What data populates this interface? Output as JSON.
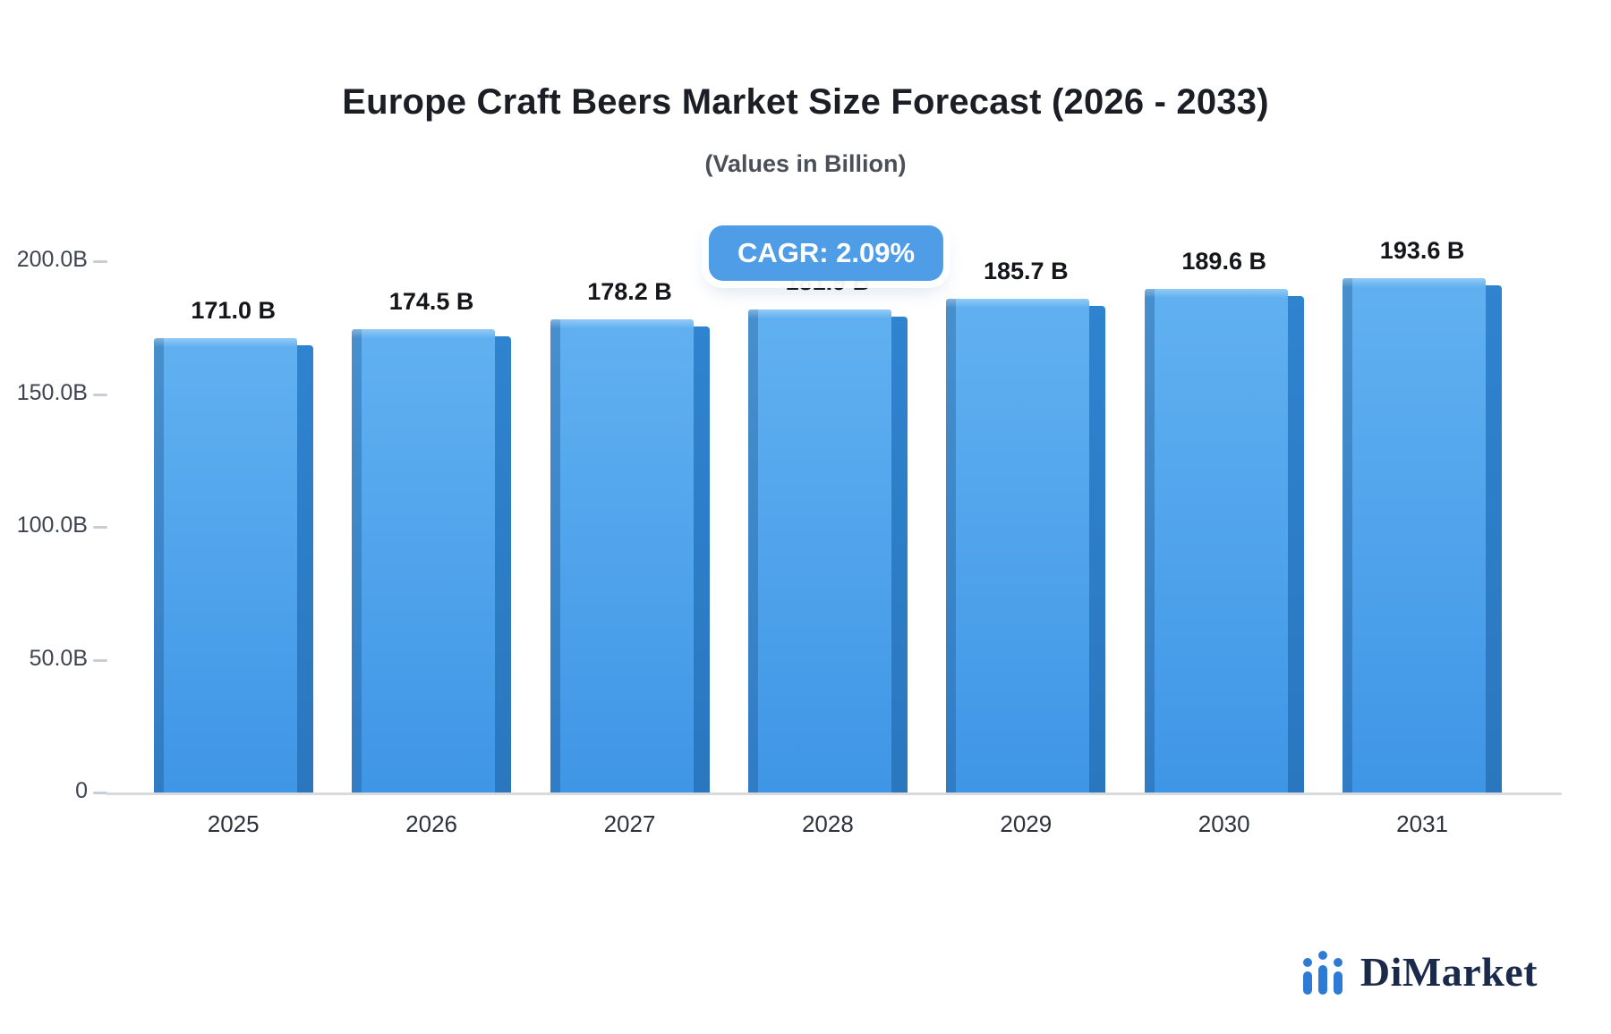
{
  "chart_data": {
    "type": "bar",
    "title": "Europe Craft Beers Market Size Forecast (2026 - 2033)",
    "subtitle": "(Values in Billion)",
    "categories": [
      "2025",
      "2026",
      "2027",
      "2028",
      "2029",
      "2030",
      "2031"
    ],
    "values": [
      171.0,
      174.5,
      178.2,
      181.9,
      185.7,
      189.6,
      193.6
    ],
    "value_labels": [
      "171.0 B",
      "174.5 B",
      "178.2 B",
      "181.9 B",
      "185.7 B",
      "189.6 B",
      "193.6 B"
    ],
    "ylim": [
      0,
      200
    ],
    "yticks": [
      {
        "value": 200,
        "label": "200.0B"
      },
      {
        "value": 150,
        "label": "150.0B"
      },
      {
        "value": 100,
        "label": "100.0B"
      },
      {
        "value": 50,
        "label": "50.0B"
      },
      {
        "value": 0,
        "label": "0"
      }
    ],
    "grid": "off",
    "legend": "none",
    "annotation": {
      "cagr_label": "CAGR: 2.09%"
    },
    "bar_color": "#42A0EA",
    "bar_side_color": "#2C79C2",
    "accent": "#4F9DE6"
  },
  "brand": {
    "name": "DiMarket",
    "icon": "bar-chart-dots-icon",
    "text_color": "#1b2a4a",
    "icon_color": "#2D7BD4"
  }
}
